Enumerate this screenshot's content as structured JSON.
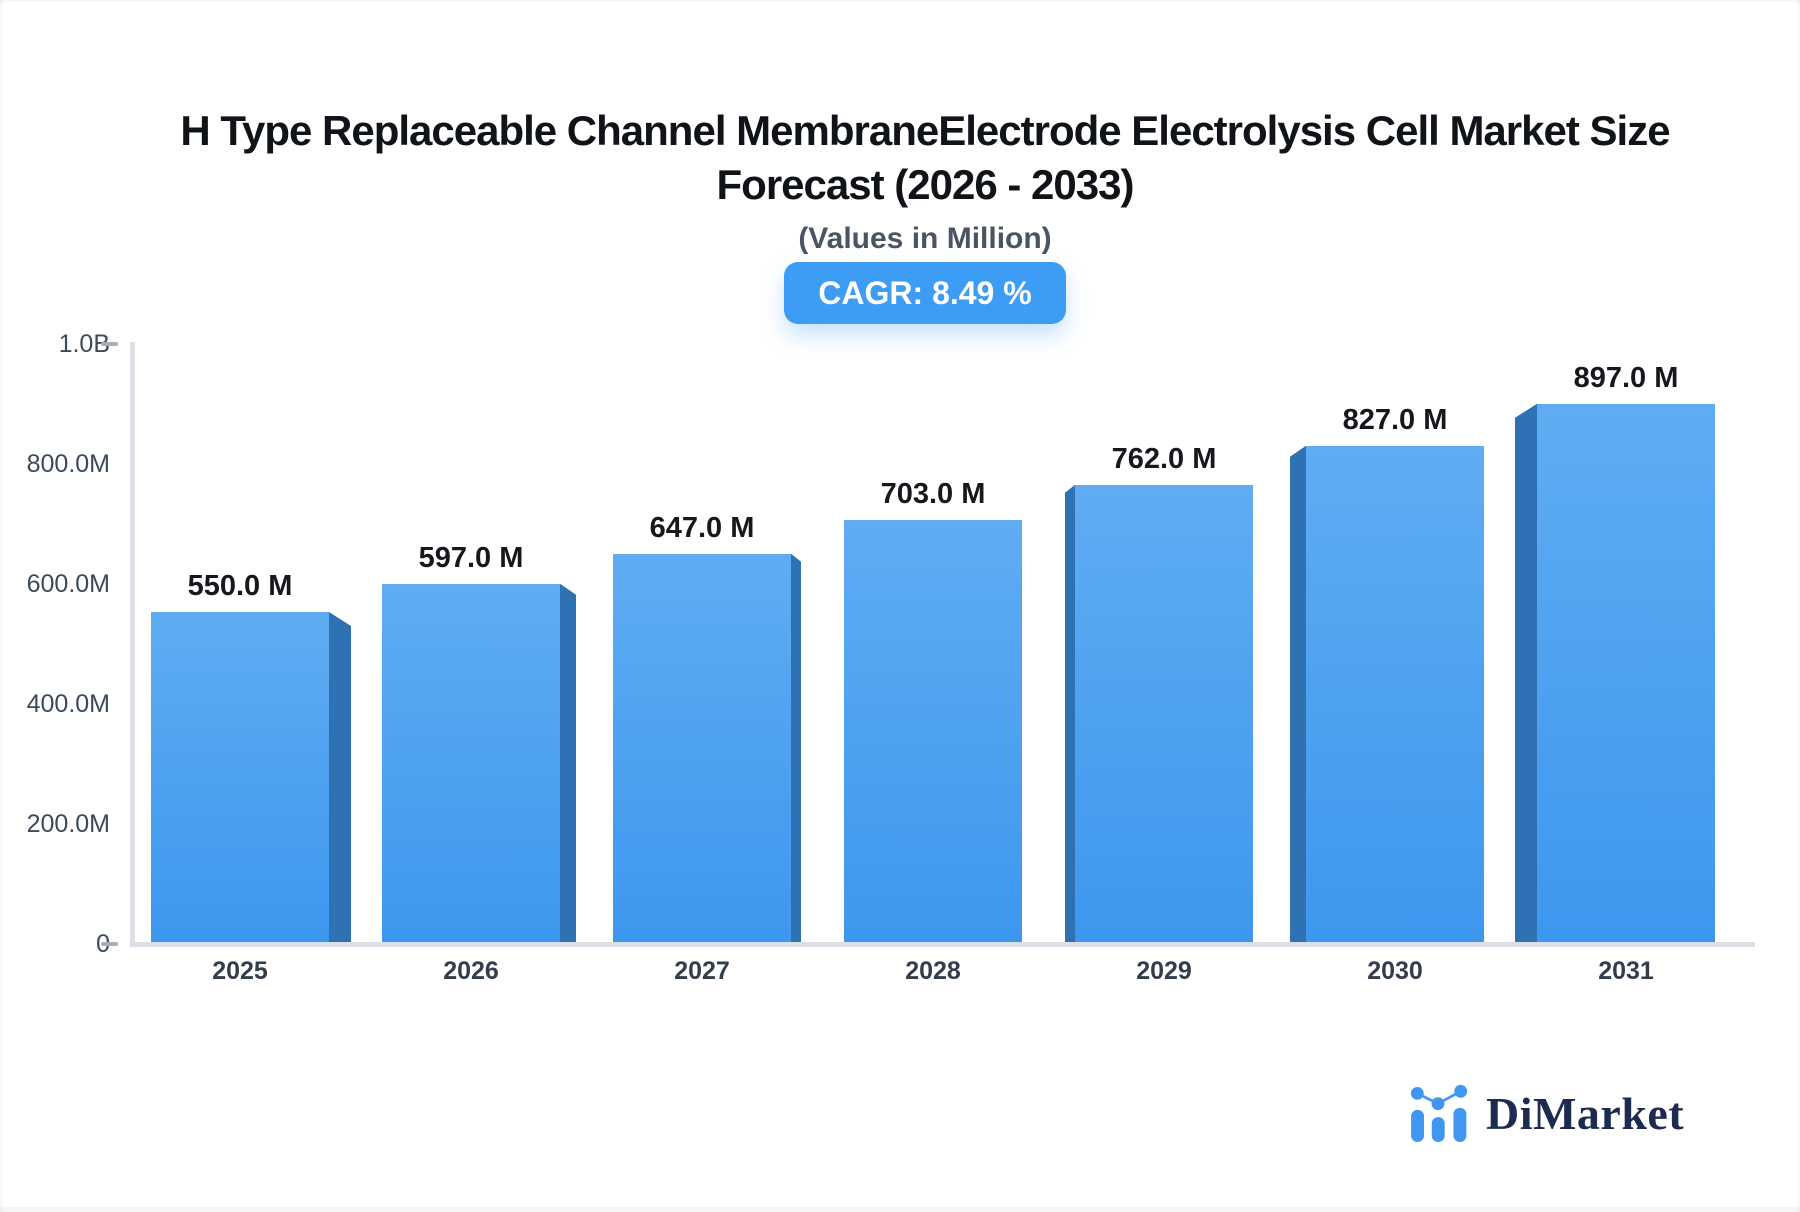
{
  "header": {
    "title_line1": "H Type Replaceable Channel MembraneElectrode Electrolysis Cell Market Size",
    "title_line2": "Forecast (2026 - 2033)",
    "subtitle": "(Values in Million)",
    "cagr_label": "CAGR: 8.49 %"
  },
  "brand": {
    "name": "DiMarket",
    "icon": "bar-line-chart-icon"
  },
  "colors": {
    "bar_face_top": "#5FACF2",
    "bar_face_bottom": "#3E97EF",
    "bar_side": "#2E72B4",
    "badge_bg": "#3D9CF3",
    "badge_text": "#FFFFFF",
    "axis_line": "#DCDFE5",
    "tick_dash": "#A9AEB6",
    "title_text": "#101418",
    "subtitle_text": "#4A5462",
    "tick_text": "#3E4A59",
    "year_text": "#333D4B",
    "value_text": "#15181C",
    "brand_text": "#1C2B4F",
    "brand_icon": "#4196F0"
  },
  "chart_data": {
    "type": "bar",
    "title": "H Type Replaceable Channel MembraneElectrode Electrolysis Cell Market Size Forecast (2026 - 2033)",
    "subtitle": "(Values in Million)",
    "cagr_pct": 8.49,
    "categories": [
      "2025",
      "2026",
      "2027",
      "2028",
      "2029",
      "2030",
      "2031"
    ],
    "values": [
      550,
      597,
      647,
      703,
      762,
      827,
      897
    ],
    "value_labels": [
      "550.0 M",
      "597.0 M",
      "647.0 M",
      "703.0 M",
      "762.0 M",
      "827.0 M",
      "897.0 M"
    ],
    "ylabel": "",
    "xlabel": "",
    "ylim": [
      0,
      1000
    ],
    "yticks": [
      {
        "label": "1.0B",
        "value": 1000,
        "dash": true
      },
      {
        "label": "800.0M",
        "value": 800,
        "dash": false
      },
      {
        "label": "600.0M",
        "value": 600,
        "dash": false
      },
      {
        "label": "400.0M",
        "value": 400,
        "dash": false
      },
      {
        "label": "200.0M",
        "value": 200,
        "dash": false
      },
      {
        "label": "0",
        "value": 0,
        "dash": true
      }
    ],
    "grid": false,
    "legend": false,
    "bar_style": "pseudo-3d, depth toward chart center"
  }
}
